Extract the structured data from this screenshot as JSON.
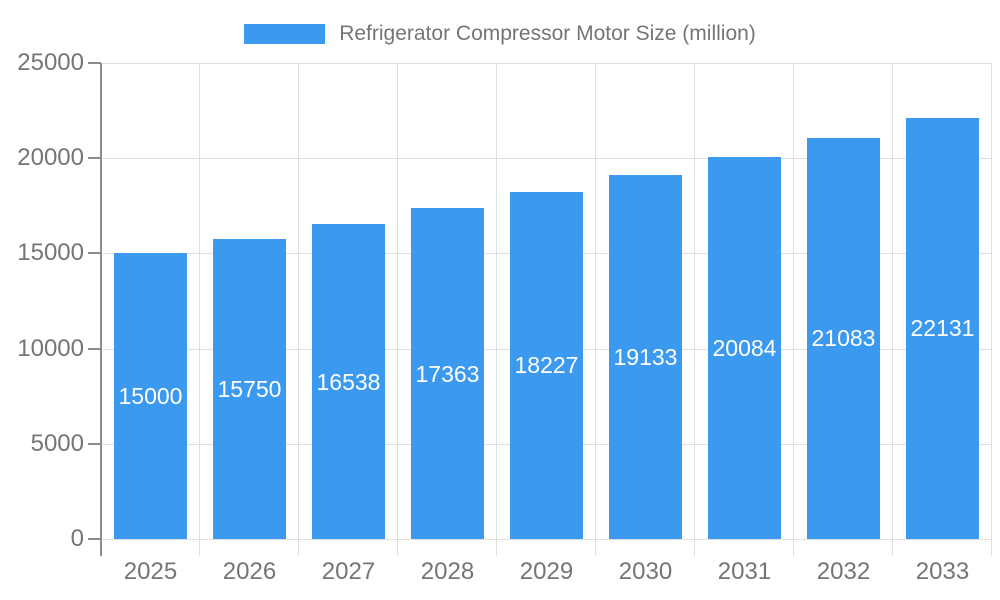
{
  "legend": {
    "label": "Refrigerator Compressor Motor Size (million)"
  },
  "chart_data": {
    "type": "bar",
    "title": "Refrigerator Compressor Motor Size (million)",
    "categories": [
      "2025",
      "2026",
      "2027",
      "2028",
      "2029",
      "2030",
      "2031",
      "2032",
      "2033"
    ],
    "series": [
      {
        "name": "Refrigerator Compressor Motor Size (million)",
        "values": [
          15000,
          15750,
          16538,
          17363,
          18227,
          19133,
          20084,
          21083,
          22131
        ]
      }
    ],
    "bar_labels": [
      "15000",
      "15750",
      "16538",
      "17363",
      "18227",
      "19133",
      "20084",
      "21083",
      "22131"
    ],
    "xlabel": "",
    "ylabel": "",
    "ylim": [
      0,
      25000
    ],
    "yticks": [
      0,
      5000,
      10000,
      15000,
      20000,
      25000
    ],
    "ytick_labels": [
      "0",
      "5000",
      "10000",
      "15000",
      "20000",
      "25000"
    ],
    "grid": true,
    "legend_position": "top-center",
    "colors": {
      "bar": "#3b99f0",
      "bar_label_text": "#ffffff",
      "axis_text": "#757575",
      "gridline": "#e0e0e0",
      "axis_line": "#8c8c8c",
      "background": "#ffffff"
    }
  }
}
